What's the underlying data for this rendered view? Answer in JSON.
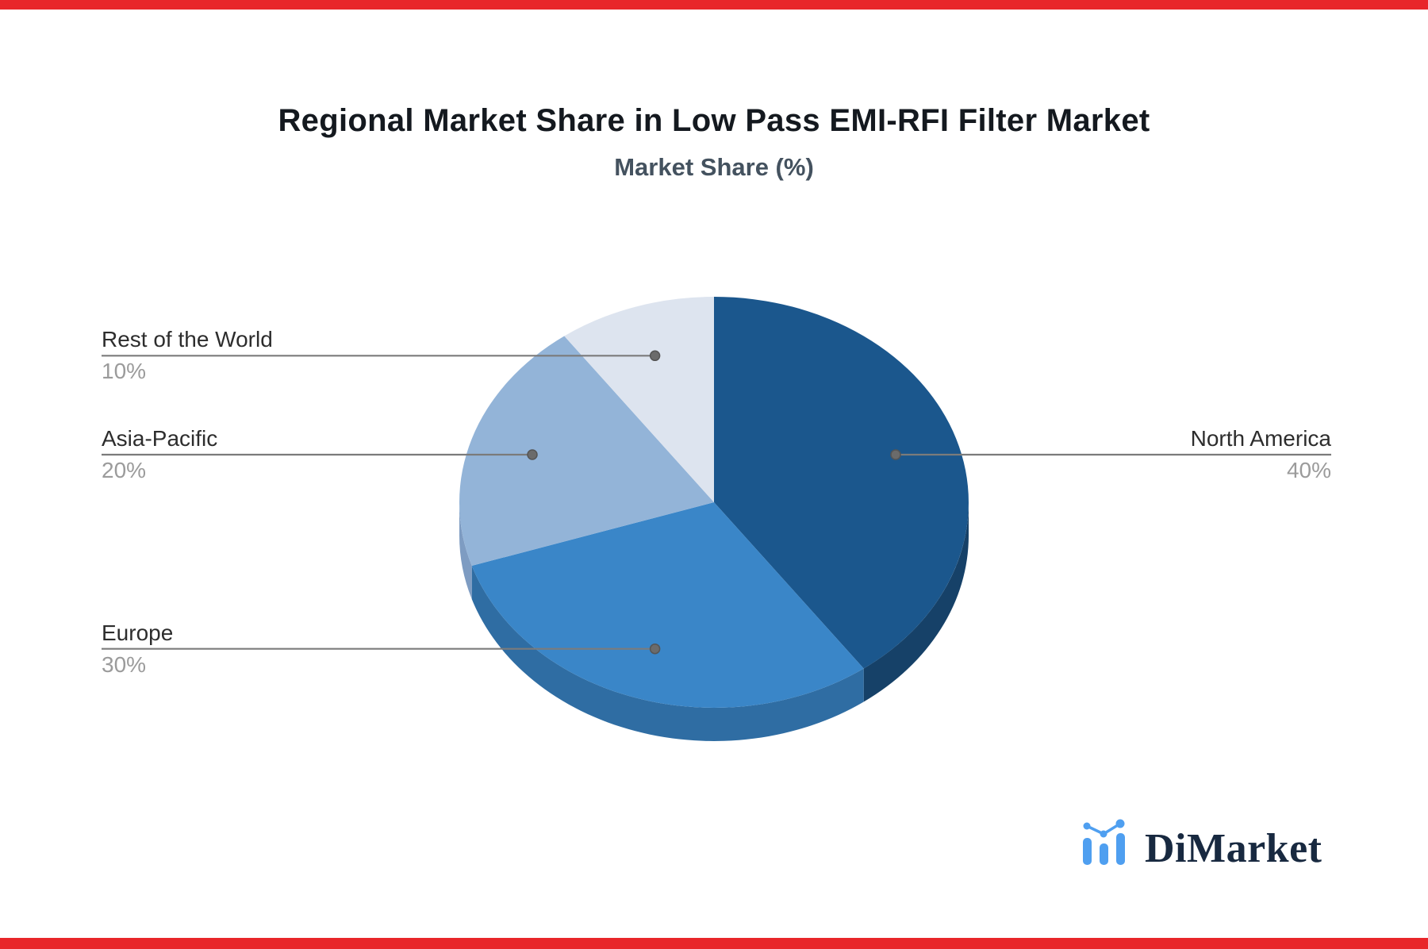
{
  "page": {
    "background": "#ffffff",
    "accent_bar_color": "#e8262a"
  },
  "header": {
    "title": "Regional Market Share in Low Pass EMI-RFI Filter Market",
    "subtitle": "Market Share (%)"
  },
  "chart_data": {
    "type": "pie",
    "style": "3d",
    "title": "Regional Market Share in Low Pass EMI-RFI Filter Market",
    "subtitle": "Market Share (%)",
    "unit": "%",
    "start_angle_deg": 90,
    "direction": "clockwise",
    "legend": "none",
    "labels": {
      "position": "outside",
      "leader_lines": true,
      "dot_markers": true
    },
    "categories": [
      "North America",
      "Europe",
      "Asia-Pacific",
      "Rest of the World"
    ],
    "values": [
      40,
      30,
      20,
      10
    ],
    "series": [
      {
        "name": "North America",
        "value": 40,
        "pct_label": "40%",
        "color": "#1b578d",
        "side_color": "#164168",
        "label_side": "right"
      },
      {
        "name": "Europe",
        "value": 30,
        "pct_label": "30%",
        "color": "#3a86c8",
        "side_color": "#2f6da3",
        "label_side": "left"
      },
      {
        "name": "Asia-Pacific",
        "value": 20,
        "pct_label": "20%",
        "color": "#93b4d8",
        "side_color": "#7e9cc2",
        "label_side": "left"
      },
      {
        "name": "Rest of the World",
        "value": 10,
        "pct_label": "10%",
        "color": "#dde4ef",
        "label_side": "left"
      }
    ],
    "leader_line_color": "#7b7b7b",
    "label_text_color": "#2d2d2d",
    "pct_text_color": "#9b9b9b"
  },
  "logo": {
    "text": "DiMarket",
    "icon": "mini-bar-chart-icon",
    "icon_color": "#4f9ff0",
    "text_color": "#182940"
  }
}
